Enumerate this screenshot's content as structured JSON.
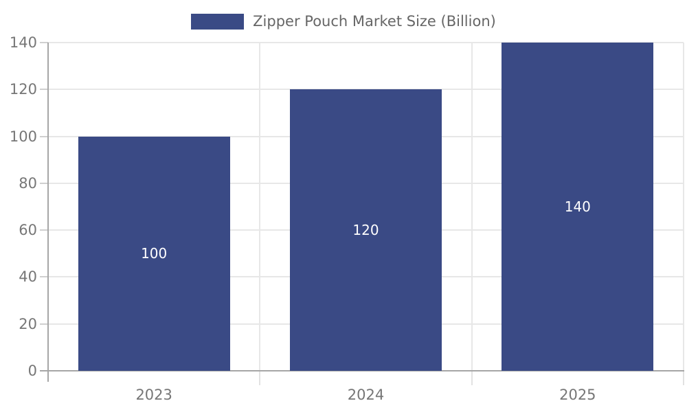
{
  "chart_data": {
    "type": "bar",
    "title": "Zipper Pouch Market Size (Billion)",
    "categories": [
      "2023",
      "2024",
      "2025"
    ],
    "values": [
      100,
      120,
      140
    ],
    "bar_value_labels": [
      "100",
      "120",
      "140"
    ],
    "xlabel": "",
    "ylabel": "",
    "ylim": [
      0,
      140
    ],
    "yticks": [
      0,
      20,
      40,
      60,
      80,
      100,
      120,
      140
    ],
    "ytick_labels": [
      "0",
      "20",
      "40",
      "60",
      "80",
      "100",
      "120",
      "140"
    ],
    "grid": true,
    "legend_position": "top-center",
    "legend_entries": [
      "Zipper Pouch Market Size (Billion)"
    ],
    "colors": {
      "bar": "#3a4a85",
      "bar_label": "#ffffff",
      "axis": "#a6a6a6",
      "gridline": "#e7e7e7",
      "tick_label": "#767676",
      "legend_text": "#666666"
    }
  }
}
